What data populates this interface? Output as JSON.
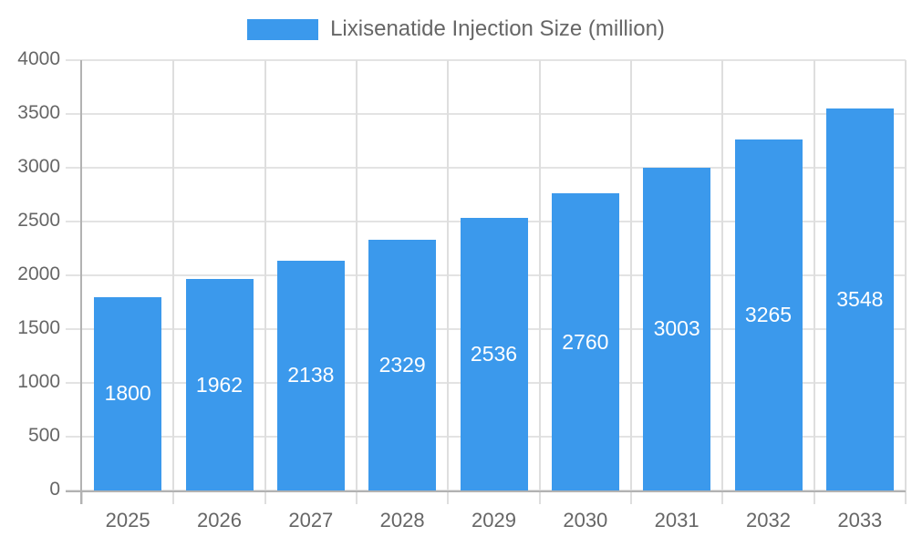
{
  "legend": {
    "label": "Lixisenatide Injection Size (million)"
  },
  "chart_data": {
    "type": "bar",
    "title": "Lixisenatide Injection Size (million)",
    "categories": [
      "2025",
      "2026",
      "2027",
      "2028",
      "2029",
      "2030",
      "2031",
      "2032",
      "2033"
    ],
    "values": [
      1800,
      1962,
      2138,
      2329,
      2536,
      2760,
      3003,
      3265,
      3548
    ],
    "series": [
      {
        "name": "Lixisenatide Injection Size (million)",
        "values": [
          1800,
          1962,
          2138,
          2329,
          2536,
          2760,
          3003,
          3265,
          3548
        ]
      }
    ],
    "xlabel": "",
    "ylabel": "",
    "ylim": [
      0,
      4000
    ],
    "yticks": [
      0,
      500,
      1000,
      1500,
      2000,
      2500,
      3000,
      3500,
      4000
    ],
    "grid": true,
    "legend_position": "top-center",
    "bar_color": "#3b99ec",
    "bar_label_color": "#ffffff",
    "axis_text_color": "#666666"
  }
}
